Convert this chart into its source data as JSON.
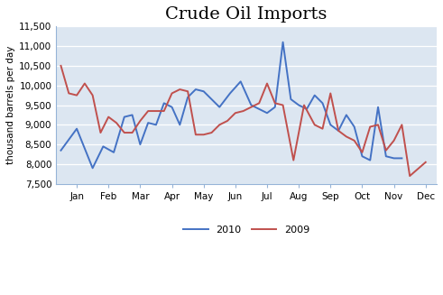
{
  "title": "Crude Oil Imports",
  "ylabel": "thousand barrels per day",
  "ylim": [
    7500,
    11500
  ],
  "yticks": [
    7500,
    8000,
    8500,
    9000,
    9500,
    10000,
    10500,
    11000,
    11500
  ],
  "months": [
    "Jan",
    "Feb",
    "Mar",
    "Apr",
    "May",
    "Jun",
    "Jul",
    "Aug",
    "Sep",
    "Oct",
    "Nov",
    "Dec"
  ],
  "color_2010": "#4472C4",
  "color_2009": "#C0504D",
  "plot_bg_color": "#DCE6F1",
  "fig_bg_color": "#FFFFFF",
  "grid_color": "#FFFFFF",
  "border_color": "#95B3D7",
  "title_fontsize": 14,
  "legend_2010": "2010",
  "legend_2009": "2009",
  "data_2010_by_month": [
    [
      8350,
      8900
    ],
    [
      7900,
      8450,
      8300
    ],
    [
      9200,
      9250,
      8500,
      9050
    ],
    [
      9000,
      9550,
      9450,
      9000
    ],
    [
      9700,
      9900,
      9850,
      9650
    ],
    [
      9450,
      9800,
      10100
    ],
    [
      9500,
      9400,
      9300,
      9450
    ],
    [
      11100,
      9650,
      9500,
      9400
    ],
    [
      9750,
      9550,
      9000,
      8850
    ],
    [
      9250,
      8950,
      8200,
      8100
    ],
    [
      9450,
      8200,
      8150,
      8150
    ],
    []
  ],
  "data_2009_by_month": [
    [
      10500,
      9800,
      9750,
      10050
    ],
    [
      9750,
      8800,
      9200,
      9050
    ],
    [
      8800,
      8800,
      9100,
      9350
    ],
    [
      9350,
      9350,
      9800,
      9900
    ],
    [
      9850,
      8750,
      8750,
      8800
    ],
    [
      9000,
      9100,
      9300,
      9350
    ],
    [
      9450,
      9550,
      10050,
      9550
    ],
    [
      9500,
      8100,
      9500
    ],
    [
      9000,
      8900,
      9800,
      8850
    ],
    [
      8700,
      8600,
      8300,
      8950
    ],
    [
      9000,
      8350,
      8600,
      9000
    ],
    [
      7700,
      8050
    ]
  ]
}
